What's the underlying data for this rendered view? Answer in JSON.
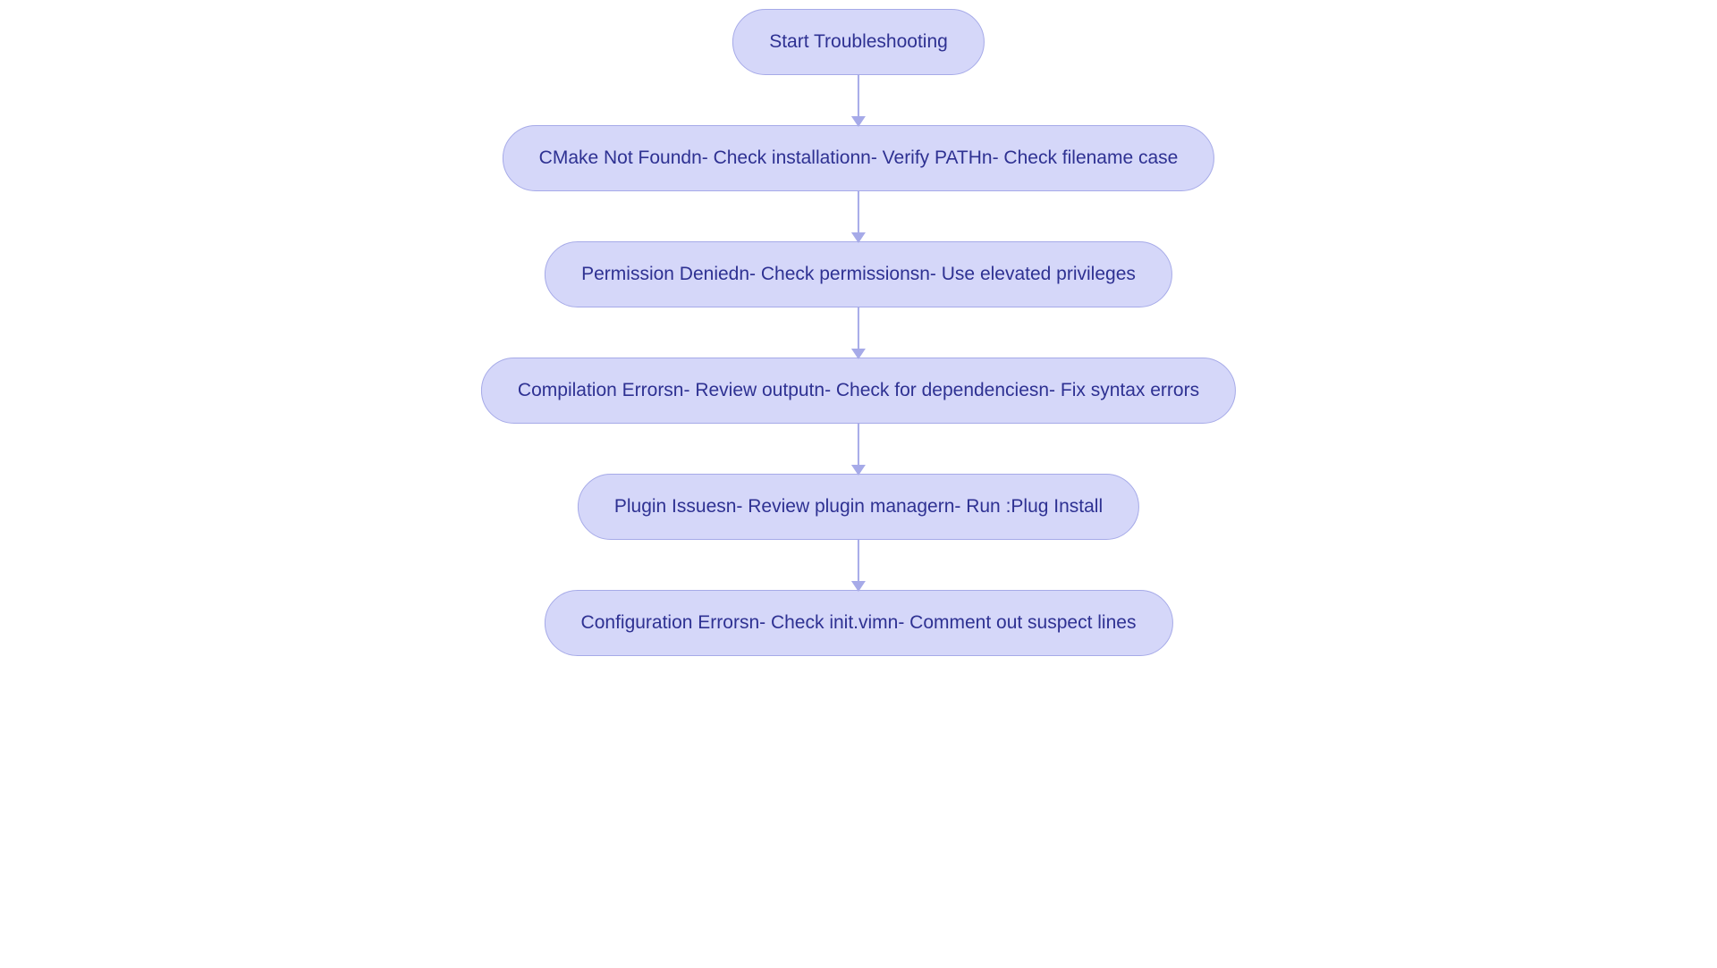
{
  "flowchart": {
    "type": "flowchart",
    "direction": "vertical",
    "background_color": "#ffffff",
    "node_fill": "#d5d7f9",
    "node_border": "#a6aae8",
    "node_border_width": 1.5,
    "node_border_radius": 40,
    "text_color": "#2e3192",
    "font_size": 21,
    "arrow_color": "#a6aae8",
    "arrow_length": 56,
    "nodes": [
      {
        "id": "n0",
        "label": "Start Troubleshooting"
      },
      {
        "id": "n1",
        "label": "CMake Not Foundn- Check installationn- Verify PATHn- Check filename case"
      },
      {
        "id": "n2",
        "label": "Permission Deniedn- Check permissionsn- Use elevated privileges"
      },
      {
        "id": "n3",
        "label": "Compilation Errorsn- Review outputn- Check for dependenciesn- Fix syntax errors"
      },
      {
        "id": "n4",
        "label": "Plugin Issuesn- Review plugin managern- Run :Plug Install"
      },
      {
        "id": "n5",
        "label": "Configuration Errorsn- Check init.vimn- Comment out suspect lines"
      }
    ],
    "edges": [
      {
        "from": "n0",
        "to": "n1"
      },
      {
        "from": "n1",
        "to": "n2"
      },
      {
        "from": "n2",
        "to": "n3"
      },
      {
        "from": "n3",
        "to": "n4"
      },
      {
        "from": "n4",
        "to": "n5"
      }
    ]
  }
}
